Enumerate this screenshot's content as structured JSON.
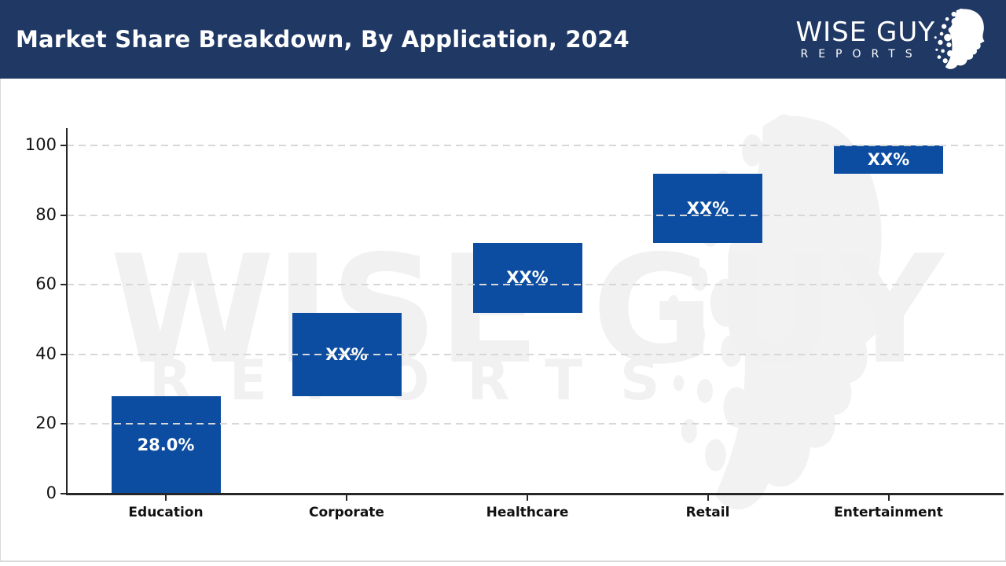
{
  "header": {
    "title": "Market Share Breakdown, By Application, 2024",
    "background": "#1f3864",
    "logo": {
      "line1": "WISE GUY",
      "line2": "REPORTS"
    }
  },
  "watermark": {
    "line1": "WISE GUY",
    "line2": "REPORTS"
  },
  "chart_data": {
    "type": "bar",
    "variant": "waterfall",
    "title": "Market Share Breakdown, By Application, 2024",
    "categories": [
      "Education",
      "Corporate",
      "Healthcare",
      "Retail",
      "Entertainment"
    ],
    "segments": [
      {
        "category": "Education",
        "start": 0,
        "end": 28,
        "label": "28.0%"
      },
      {
        "category": "Corporate",
        "start": 28,
        "end": 52,
        "label": "XX%"
      },
      {
        "category": "Healthcare",
        "start": 52,
        "end": 72,
        "label": "XX%"
      },
      {
        "category": "Retail",
        "start": 72,
        "end": 92,
        "label": "XX%"
      },
      {
        "category": "Entertainment",
        "start": 92,
        "end": 100,
        "label": "XX%"
      }
    ],
    "xlabel": "",
    "ylabel": "",
    "yticks": [
      0,
      20,
      40,
      60,
      80,
      100
    ],
    "ylim": [
      0,
      105
    ],
    "grid": "horizontal-dashed",
    "legend": "none",
    "colors": {
      "bar": "#0c4da1",
      "bar_label": "#ffffff",
      "grid": "#d7d7d7",
      "axis": "#262626",
      "tick_label": "#111111",
      "header_bg": "#1f3864",
      "watermark": "#f1f1f1"
    }
  }
}
